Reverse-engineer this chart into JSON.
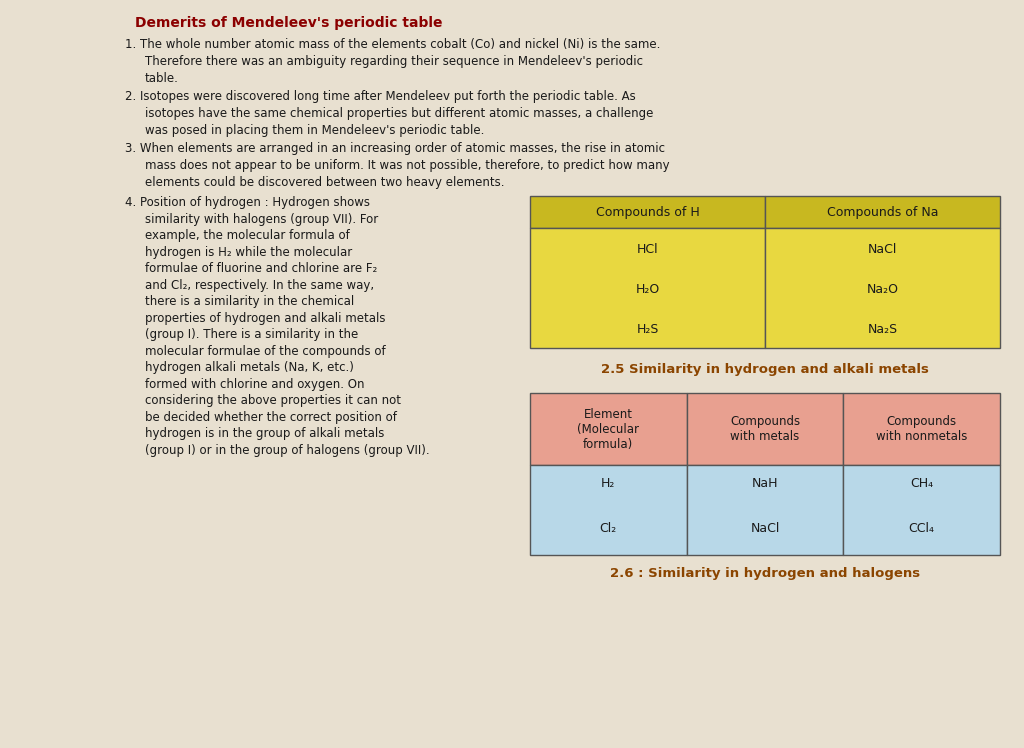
{
  "title": "Demerits of Mendeleev's periodic table",
  "background_color": "#d6cfc0",
  "page_bg": "#e8e0d0",
  "point1_line1": "The whole number atomic mass of the elements cobalt (Co) and nickel (Ni) is the same.",
  "point1_line2": "Therefore there was an ambiguity regarding their sequence in Mendeleev's periodic",
  "point1_line3": "table.",
  "point2_line1": "Isotopes were discovered long time after Mendeleev put forth the periodic table. As",
  "point2_line2": "isotopes have the same chemical properties but different atomic masses, a challenge",
  "point2_line3": "was posed in placing them in Mendeleev's periodic table.",
  "point3_line1": "When elements are arranged in an increasing order of atomic masses, the rise in atomic",
  "point3_line2": "mass does not appear to be uniform. It was not possible, therefore, to predict how many",
  "point3_line3": "elements could be discovered between two heavy elements.",
  "point4_intro": "Position of hydrogen : Hydrogen shows",
  "point4_text": [
    "similarity with halogens (group VII). For",
    "example, the molecular formula of",
    "hydrogen is H₂ while the molecular",
    "formulae of fluorine and chlorine are F₂",
    "and Cl₂, respectively. In the same way,",
    "there is a similarity in the chemical",
    "properties of hydrogen and alkali metals",
    "(group I). There is a similarity in the",
    "molecular formulae of the compounds of",
    "hydrogen alkali metals (Na, K, etc.)",
    "formed with chlorine and oxygen. On",
    "considering the above properties it can not",
    "be decided whether the correct position of",
    "hydrogen is in the group of alkali metals",
    "(group I) or in the group of halogens (group VII)."
  ],
  "table1_title_left": "Compounds of H",
  "table1_title_right": "Compounds of Na",
  "table1_header_bg": "#c8b820",
  "table1_body_bg": "#e8d840",
  "table1_left": [
    "HCl",
    "H₂O",
    "H₂S"
  ],
  "table1_right": [
    "NaCl",
    "Na₂O",
    "Na₂S"
  ],
  "table1_caption": "2.5 Similarity in hydrogen and alkali metals",
  "table2_header": [
    "Element\n(Molecular\nformula)",
    "Compounds\nwith metals",
    "Compounds\nwith nonmetals"
  ],
  "table2_header_bg": "#e8a090",
  "table2_body_bg": "#b8d8e8",
  "table2_col1": [
    "H₂",
    "Cl₂"
  ],
  "table2_col2": [
    "NaH",
    "NaCl"
  ],
  "table2_col3": [
    "CH₄",
    "CCl₄"
  ],
  "table2_caption": "2.6 : Similarity in hydrogen and halogens",
  "text_color": "#1a1a1a",
  "title_color": "#8B0000",
  "caption_color": "#8B4500"
}
